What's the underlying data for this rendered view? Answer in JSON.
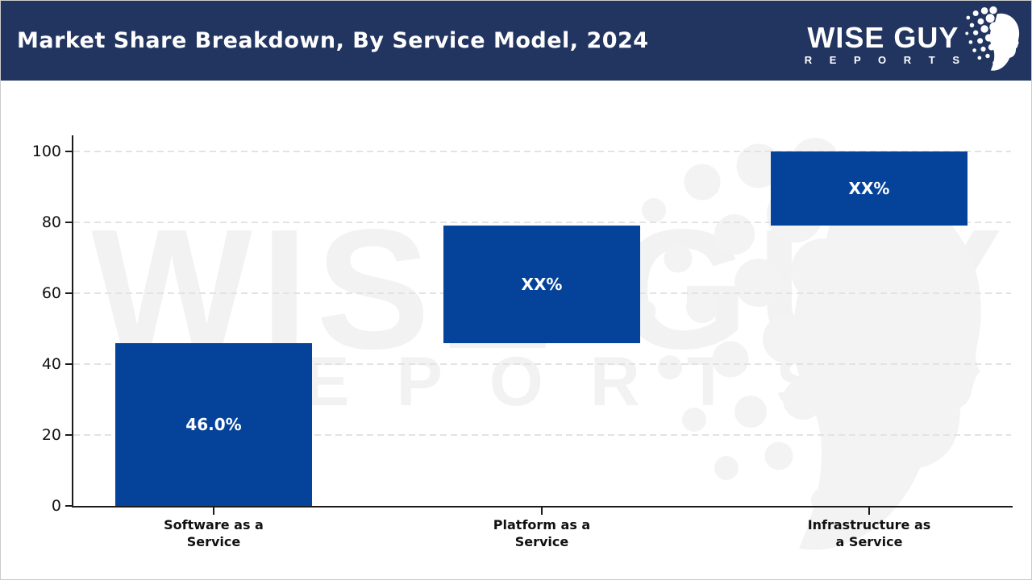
{
  "header": {
    "title": "Market Share Breakdown, By Service Model, 2024",
    "logo": {
      "line1": "WISE GUY",
      "line2": "R E P O R T S"
    }
  },
  "watermark": {
    "line1": "WISE GUY",
    "line2": "REPORTS"
  },
  "chart_data": {
    "type": "bar",
    "subtype": "waterfall",
    "title": "Market Share Breakdown, By Service Model, 2024",
    "categories": [
      "Software as a\nService",
      "Platform as a\nService",
      "Infrastructure as\na Service"
    ],
    "segments": [
      {
        "category": "Software as a Service",
        "start": 0,
        "end": 46,
        "label": "46.0%"
      },
      {
        "category": "Platform as a Service",
        "start": 46,
        "end": 79,
        "label": "XX%"
      },
      {
        "category": "Infrastructure as a Service",
        "start": 79,
        "end": 100,
        "label": "XX%"
      }
    ],
    "yticks": [
      0,
      20,
      40,
      60,
      80,
      100
    ],
    "ylim": [
      0,
      104
    ],
    "xlabel": "",
    "ylabel": "",
    "grid": "horizontal-dashed",
    "legend": "none",
    "bar_color": "#05439b",
    "bar_label_color": "#ffffff"
  },
  "colors": {
    "header_bg": "#223560",
    "bar": "#05439b",
    "grid": "#e3e3e3",
    "axis": "#1a1a1a",
    "watermark": "#f2f2f2",
    "text": "#111111",
    "border": "#cccccc"
  }
}
